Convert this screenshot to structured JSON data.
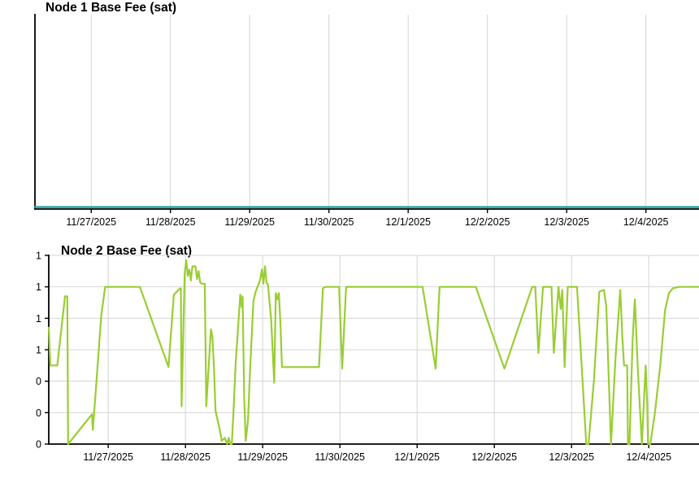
{
  "page": {
    "background": "#ffffff"
  },
  "chart_data": [
    {
      "type": "line",
      "title": "Node 1 Base Fee (sat)",
      "x_tick_labels": [
        "11/27/2025",
        "11/28/2025",
        "11/29/2025",
        "11/30/2025",
        "12/1/2025",
        "12/2/2025",
        "12/3/2025",
        "12/4/2025"
      ],
      "x_tick_days": [
        0,
        1,
        2,
        3,
        4,
        5,
        6,
        7
      ],
      "y_tick_labels": [],
      "y_tick_values": [],
      "xlim_days": [
        -0.71,
        7.67
      ],
      "ylim": [
        0,
        1.2
      ],
      "grid": "vertical-only",
      "legend": "none",
      "line_color": "#17a0a0",
      "axis_color": "#000000",
      "grid_color": "#d4d4d4",
      "series": [
        {
          "name": "Node 1 base fee",
          "note": "constant flat line just above 0 across the entire visible time range; y axis shows no tick labels",
          "points_day_value": [
            [
              -0.71,
              0.012
            ],
            [
              7.67,
              0.012
            ]
          ]
        }
      ]
    },
    {
      "type": "line",
      "title": "Node 2 Base Fee (sat)",
      "x_tick_labels": [
        "11/27/2025",
        "11/28/2025",
        "11/29/2025",
        "11/30/2025",
        "12/1/2025",
        "12/2/2025",
        "12/3/2025",
        "12/4/2025"
      ],
      "x_tick_days": [
        0,
        1,
        2,
        3,
        4,
        5,
        6,
        7
      ],
      "y_tick_labels": [
        "1",
        "1",
        "1",
        "1",
        "0",
        "0",
        "0"
      ],
      "y_tick_values": [
        1.2,
        1.0,
        0.8,
        0.6,
        0.4,
        0.2,
        0
      ],
      "xlim_days": [
        -0.77,
        7.65
      ],
      "ylim": [
        0,
        1.2
      ],
      "grid": "both",
      "legend": "none",
      "line_color": "#9acd32",
      "axis_color": "#000000",
      "grid_color": "#d4d4d4",
      "series": [
        {
          "name": "Node 2 base fee",
          "note": "fee mostly 1 sat with frequent dips to 0.5, 0.25 and 0 and brief spikes to ~1.15",
          "points_day_value": [
            [
              -0.77,
              0.74
            ],
            [
              -0.75,
              0.5
            ],
            [
              -0.66,
              0.5
            ],
            [
              -0.56,
              0.94
            ],
            [
              -0.53,
              0.94
            ],
            [
              -0.52,
              0.0
            ],
            [
              -0.21,
              0.19
            ],
            [
              -0.2,
              0.09
            ],
            [
              -0.16,
              0.35
            ],
            [
              -0.09,
              0.82
            ],
            [
              -0.04,
              1.0
            ],
            [
              0.41,
              1.0
            ],
            [
              0.78,
              0.49
            ],
            [
              0.85,
              0.95
            ],
            [
              0.93,
              0.99
            ],
            [
              0.94,
              0.99
            ],
            [
              0.95,
              0.24
            ],
            [
              0.99,
              1.08
            ],
            [
              1.01,
              1.17
            ],
            [
              1.03,
              1.07
            ],
            [
              1.05,
              1.11
            ],
            [
              1.07,
              1.04
            ],
            [
              1.09,
              1.13
            ],
            [
              1.13,
              1.13
            ],
            [
              1.15,
              1.05
            ],
            [
              1.17,
              1.1
            ],
            [
              1.19,
              1.03
            ],
            [
              1.21,
              1.02
            ],
            [
              1.25,
              1.02
            ],
            [
              1.27,
              0.24
            ],
            [
              1.33,
              0.73
            ],
            [
              1.35,
              0.68
            ],
            [
              1.37,
              0.48
            ],
            [
              1.39,
              0.21
            ],
            [
              1.44,
              0.1
            ],
            [
              1.47,
              0.02
            ],
            [
              1.51,
              0.04
            ],
            [
              1.54,
              0.0
            ],
            [
              1.56,
              0.04
            ],
            [
              1.58,
              0.0
            ],
            [
              1.6,
              0.0
            ],
            [
              1.62,
              0.19
            ],
            [
              1.65,
              0.51
            ],
            [
              1.71,
              0.95
            ],
            [
              1.73,
              0.87
            ],
            [
              1.74,
              0.94
            ],
            [
              1.76,
              0.3
            ],
            [
              1.78,
              0.02
            ],
            [
              1.81,
              0.15
            ],
            [
              1.84,
              0.51
            ],
            [
              1.88,
              0.91
            ],
            [
              1.91,
              0.97
            ],
            [
              1.95,
              1.02
            ],
            [
              1.97,
              1.05
            ],
            [
              1.99,
              1.11
            ],
            [
              2.01,
              1.02
            ],
            [
              2.03,
              1.13
            ],
            [
              2.05,
              1.03
            ],
            [
              2.07,
              1.01
            ],
            [
              2.11,
              0.79
            ],
            [
              2.13,
              0.59
            ],
            [
              2.15,
              0.39
            ],
            [
              2.17,
              0.96
            ],
            [
              2.19,
              0.92
            ],
            [
              2.21,
              0.96
            ],
            [
              2.23,
              0.77
            ],
            [
              2.25,
              0.49
            ],
            [
              2.73,
              0.49
            ],
            [
              2.78,
              0.99
            ],
            [
              2.81,
              1.0
            ],
            [
              2.99,
              1.0
            ],
            [
              3.03,
              0.48
            ],
            [
              3.08,
              1.0
            ],
            [
              4.07,
              1.0
            ],
            [
              4.24,
              0.48
            ],
            [
              4.29,
              1.0
            ],
            [
              4.76,
              1.0
            ],
            [
              5.13,
              0.48
            ],
            [
              5.49,
              1.0
            ],
            [
              5.53,
              1.0
            ],
            [
              5.57,
              0.58
            ],
            [
              5.63,
              1.0
            ],
            [
              5.74,
              1.0
            ],
            [
              5.77,
              0.58
            ],
            [
              5.83,
              1.0
            ],
            [
              5.86,
              0.86
            ],
            [
              5.88,
              0.98
            ],
            [
              5.91,
              0.49
            ],
            [
              5.95,
              1.0
            ],
            [
              6.07,
              1.0
            ],
            [
              6.19,
              0.0
            ],
            [
              6.22,
              0.0
            ],
            [
              6.29,
              0.41
            ],
            [
              6.36,
              0.97
            ],
            [
              6.42,
              0.98
            ],
            [
              6.45,
              0.87
            ],
            [
              6.51,
              0.0
            ],
            [
              6.57,
              0.56
            ],
            [
              6.63,
              0.98
            ],
            [
              6.66,
              0.66
            ],
            [
              6.68,
              0.5
            ],
            [
              6.72,
              0.5
            ],
            [
              6.73,
              0.0
            ],
            [
              6.75,
              0.0
            ],
            [
              6.79,
              0.66
            ],
            [
              6.82,
              0.92
            ],
            [
              6.86,
              0.46
            ],
            [
              6.91,
              0.0
            ],
            [
              6.94,
              0.3
            ],
            [
              6.96,
              0.5
            ],
            [
              6.98,
              0.25
            ],
            [
              6.99,
              0.0
            ],
            [
              7.02,
              0.0
            ],
            [
              7.08,
              0.2
            ],
            [
              7.15,
              0.51
            ],
            [
              7.21,
              0.85
            ],
            [
              7.26,
              0.96
            ],
            [
              7.31,
              0.99
            ],
            [
              7.39,
              1.0
            ],
            [
              7.65,
              1.0
            ]
          ]
        }
      ]
    }
  ]
}
